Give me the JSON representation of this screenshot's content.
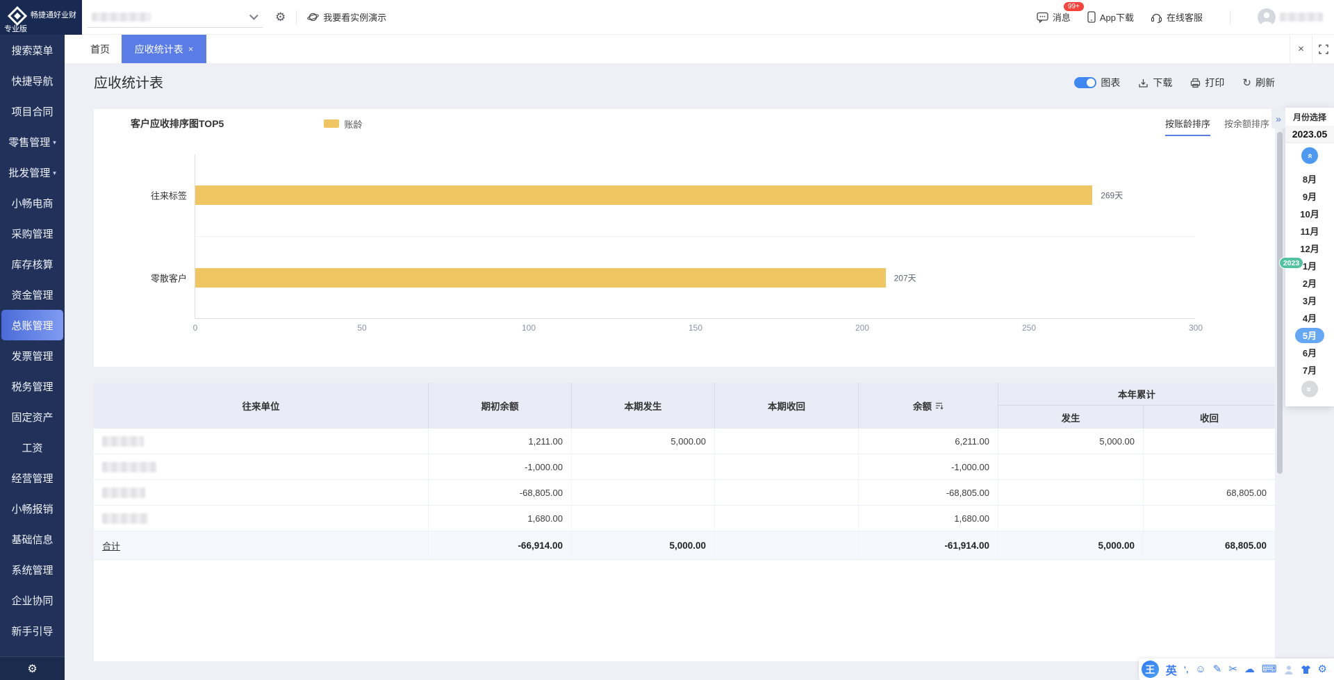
{
  "colors": {
    "accent_blue": "#5a7ce6",
    "bar_yellow": "#f0c662",
    "badge_red": "#f5453d",
    "year_badge_green": "#53c2a0",
    "selected_month_blue": "#66a7f5",
    "sidebar_navy": "#213159"
  },
  "brand": {
    "name": "畅捷通好业财",
    "edition": "专业版"
  },
  "topbar": {
    "demo_link": "我要看实例演示",
    "messages": "消息",
    "messages_badge": "99+",
    "app_download": "App下载",
    "online_support": "在线客服"
  },
  "tabs": {
    "home": "首页",
    "current": "应收统计表",
    "close_glyph": "×"
  },
  "window": {
    "close_glyph": "×"
  },
  "page_title": "应收统计表",
  "view_toolbar": {
    "chart_toggle_label": "图表",
    "download": "下载",
    "print": "打印",
    "refresh": "刷新",
    "refresh_glyph": "↻"
  },
  "sidebar": {
    "items": [
      {
        "label": "搜索菜单"
      },
      {
        "label": "快捷导航"
      },
      {
        "label": "项目合同"
      },
      {
        "label": "零售管理",
        "arrow": true
      },
      {
        "label": "批发管理",
        "arrow": true
      },
      {
        "label": "小畅电商"
      },
      {
        "label": "采购管理"
      },
      {
        "label": "库存核算"
      },
      {
        "label": "资金管理"
      },
      {
        "label": "总账管理",
        "active": true
      },
      {
        "label": "发票管理"
      },
      {
        "label": "税务管理"
      },
      {
        "label": "固定资产"
      },
      {
        "label": "工资"
      },
      {
        "label": "经营管理"
      },
      {
        "label": "小畅报销"
      },
      {
        "label": "基础信息"
      },
      {
        "label": "系统管理"
      },
      {
        "label": "企业协同"
      },
      {
        "label": "新手引导"
      }
    ],
    "footer_gear_glyph": "⚙",
    "arrow_glyph": "▾"
  },
  "chart_header": {
    "title": "客户应收排序图TOP5",
    "legend_label": "账龄",
    "sort_tabs": [
      {
        "label": "按账龄排序",
        "active": true
      },
      {
        "label": "按余额排序",
        "active": false
      }
    ]
  },
  "chart_data": {
    "type": "bar",
    "orientation": "horizontal",
    "title": "客户应收排序图TOP5",
    "legend": [
      "账龄"
    ],
    "legend_position": "top",
    "categories": [
      "往来标签",
      "零散客户"
    ],
    "values": [
      269,
      207
    ],
    "unit": "天",
    "value_labels": [
      "269天",
      "207天"
    ],
    "xlim": [
      0,
      300
    ],
    "xticks": [
      0,
      50,
      100,
      150,
      200,
      250,
      300
    ],
    "bar_color": "#f0c662",
    "grid": true
  },
  "table": {
    "columns": [
      "往来单位",
      "期初余额",
      "本期发生",
      "本期收回",
      "余额",
      "本年累计"
    ],
    "subcolumns": [
      "发生",
      "收回"
    ],
    "rows": [
      {
        "name_redacted": true,
        "redact_width": 60,
        "values": [
          "1,211.00",
          "5,000.00",
          "",
          "6,211.00",
          "5,000.00",
          ""
        ]
      },
      {
        "name_redacted": true,
        "redact_width": 78,
        "values": [
          "-1,000.00",
          "",
          "",
          "-1,000.00",
          "",
          ""
        ]
      },
      {
        "name_redacted": true,
        "redact_width": 62,
        "values": [
          "-68,805.00",
          "",
          "",
          "-68,805.00",
          "",
          "68,805.00"
        ]
      },
      {
        "name_redacted": true,
        "redact_width": 66,
        "values": [
          "1,680.00",
          "",
          "",
          "1,680.00",
          "",
          ""
        ]
      }
    ],
    "total": {
      "label": "合计",
      "values": [
        "-66,914.00",
        "5,000.00",
        "",
        "-61,914.00",
        "5,000.00",
        "68,805.00"
      ]
    }
  },
  "month_panel": {
    "title": "月份选择",
    "current": "2023.05",
    "year_badge": "2023",
    "scroll_glyph": "»",
    "months": [
      {
        "label": "8月"
      },
      {
        "label": "9月"
      },
      {
        "label": "10月"
      },
      {
        "label": "11月"
      },
      {
        "label": "12月"
      },
      {
        "label": "1月"
      },
      {
        "label": "2月"
      },
      {
        "label": "3月"
      },
      {
        "label": "4月"
      },
      {
        "label": "5月",
        "selected": true
      },
      {
        "label": "6月"
      },
      {
        "label": "7月"
      }
    ]
  },
  "collapse_glyph": "»",
  "ime": {
    "logo": "王",
    "lang": "英",
    "punct": "’,",
    "icons": [
      {
        "name": "smiley-icon",
        "glyph": "☺"
      },
      {
        "name": "pen-icon",
        "glyph": "✎"
      },
      {
        "name": "scissors-icon",
        "glyph": "✂"
      },
      {
        "name": "cloud-icon",
        "glyph": "☁"
      },
      {
        "name": "keyboard-icon",
        "glyph": "⌨"
      },
      {
        "name": "person-icon",
        "glyph": "person"
      },
      {
        "name": "shirt-icon",
        "glyph": "shirt"
      },
      {
        "name": "gear-icon",
        "glyph": "⚙"
      }
    ]
  }
}
